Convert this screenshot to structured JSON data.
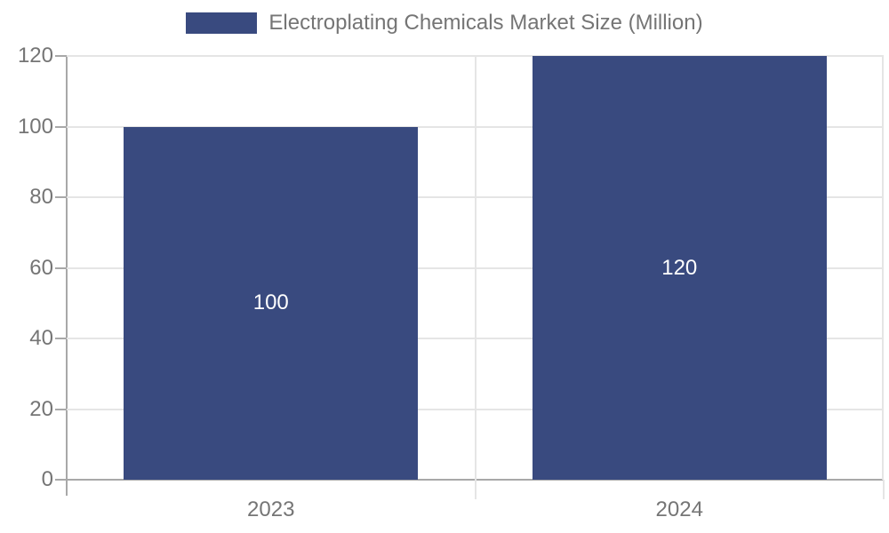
{
  "legend": {
    "label": "Electroplating Chemicals Market Size (Million)"
  },
  "chart_data": {
    "type": "bar",
    "title": "Electroplating Chemicals Market Size (Million)",
    "categories": [
      "2023",
      "2024"
    ],
    "values": [
      100,
      120
    ],
    "bar_value_labels": [
      "100",
      "120"
    ],
    "xlabel": "",
    "ylabel": "",
    "ylim": [
      0,
      120
    ],
    "yticks": [
      0,
      20,
      40,
      60,
      80,
      100,
      120
    ],
    "grid": true,
    "legend_position": "top-center",
    "colors": {
      "bar": "#394A7F",
      "grid_line": "#e5e5e5",
      "axis_line": "#a8a8a8",
      "tick_text": "#757575",
      "value_label": "#ffffff"
    }
  }
}
